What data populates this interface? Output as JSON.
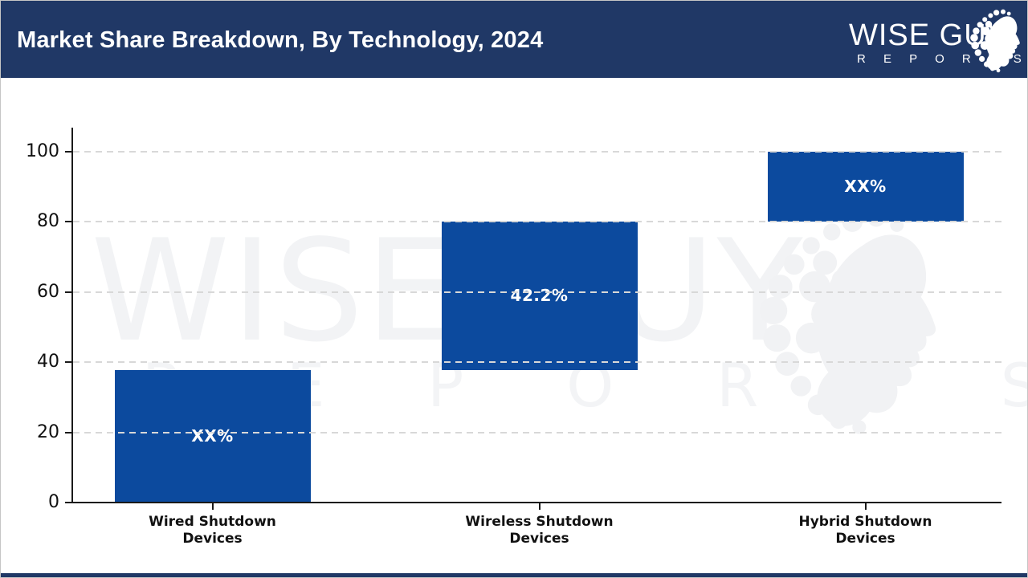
{
  "header": {
    "title": "Market Share Breakdown, By Technology, 2024",
    "logo": {
      "wordmark": "WISE GUY",
      "reports": "R E P O R T S"
    }
  },
  "watermark": {
    "wordmark": "WISE GUY",
    "reports": "R E P O R T S"
  },
  "chart_data": {
    "type": "bar",
    "subtype": "floating-waterfall",
    "title": "Market Share Breakdown, By Technology, 2024",
    "categories": [
      "Wired Shutdown Devices",
      "Wireless Shutdown Devices",
      "Hybrid Shutdown Devices"
    ],
    "category_lines": [
      [
        "Wired Shutdown",
        "Devices"
      ],
      [
        "Wireless Shutdown",
        "Devices"
      ],
      [
        "Hybrid Shutdown",
        "Devices"
      ]
    ],
    "segments": [
      {
        "category": "Wired Shutdown Devices",
        "start": 0,
        "end": 37.8,
        "label": "XX%"
      },
      {
        "category": "Wireless Shutdown Devices",
        "start": 37.8,
        "end": 80,
        "label": "42.2%"
      },
      {
        "category": "Hybrid Shutdown Devices",
        "start": 80,
        "end": 100,
        "label": "XX%"
      }
    ],
    "yticks": [
      0,
      20,
      40,
      60,
      80,
      100
    ],
    "ylim": [
      0,
      106
    ],
    "xlabel": "",
    "ylabel": "",
    "grid": "dashed-horizontal",
    "legend": "none",
    "bar_color": "#0c4a9e",
    "bar_label_color": "#ffffff"
  },
  "colors": {
    "header_bg": "#203866",
    "footer_bg": "#203866",
    "axis": "#1a1a1a",
    "gridline": "#d8d8d8",
    "watermark": "#f2f3f5"
  }
}
